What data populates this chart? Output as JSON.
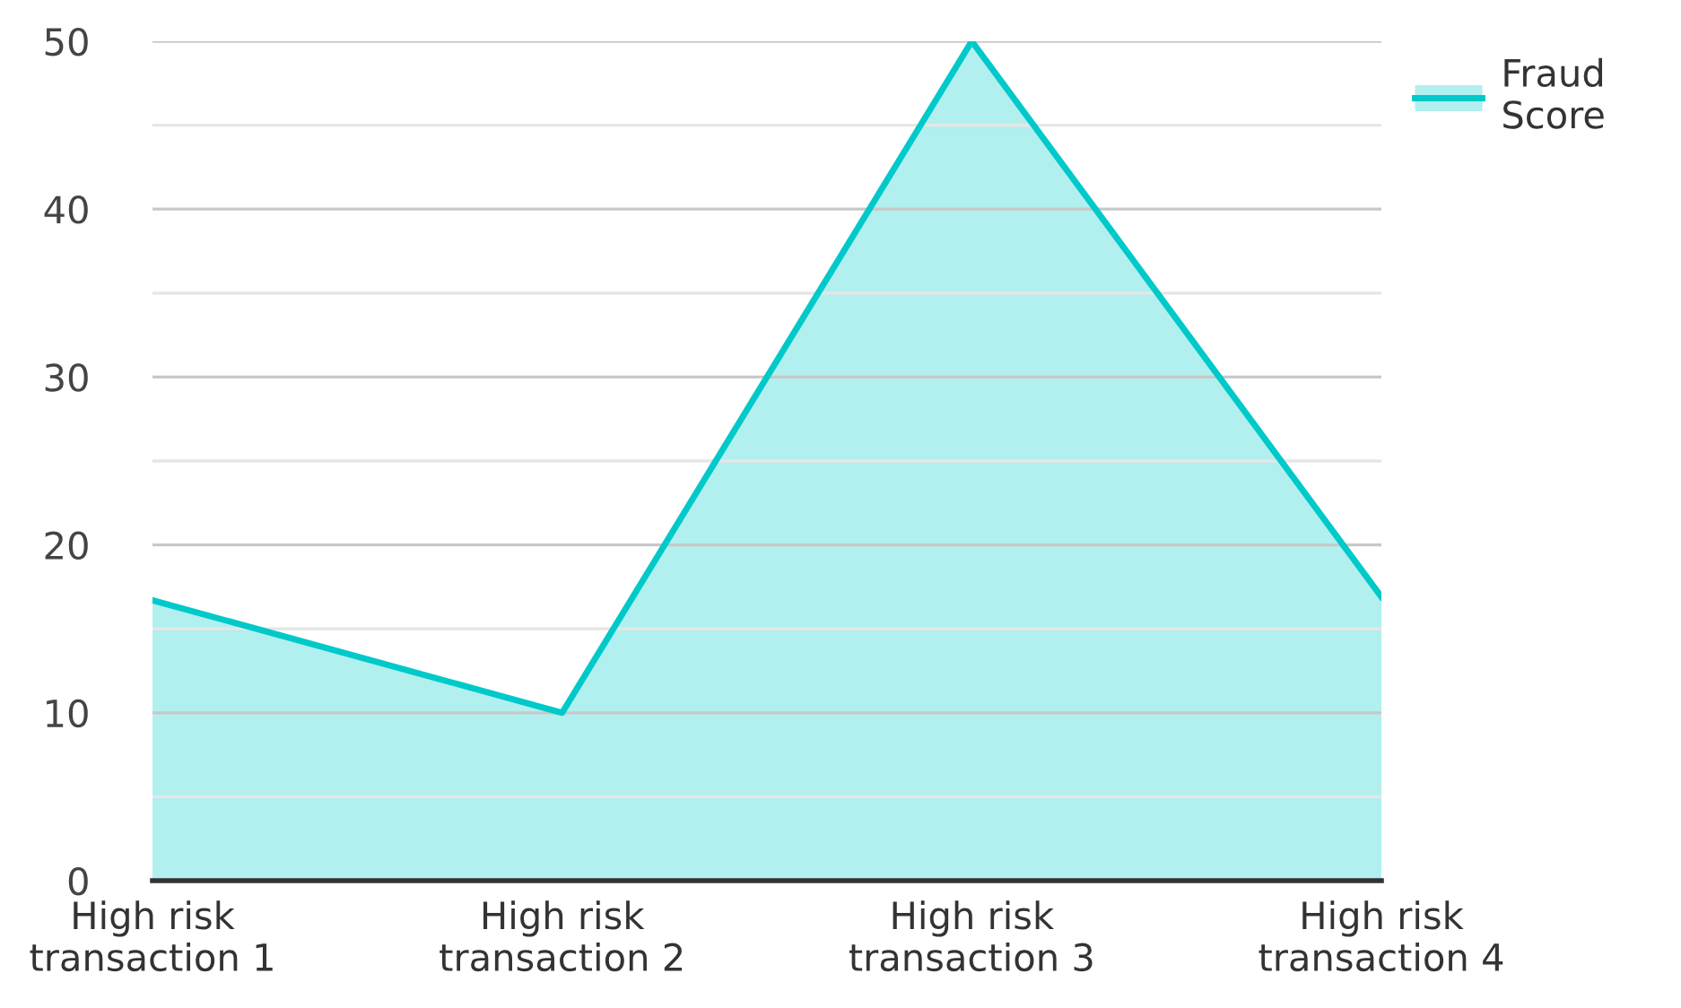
{
  "chart_data": {
    "type": "area",
    "categories": [
      "High risk\ntransaction 1",
      "High risk\ntransaction 2",
      "High risk\ntransaction 3",
      "High risk\ntransaction 4"
    ],
    "series": [
      {
        "name": "Fraud\nScore",
        "color": "#00c9c9",
        "values": [
          16.7,
          10,
          50,
          16.9
        ]
      }
    ],
    "ylim": [
      0,
      50
    ],
    "yticks": [
      0,
      {
        "value": 5,
        "label": null
      },
      10,
      {
        "value": 15,
        "label": null
      },
      20,
      {
        "value": 25,
        "label": null
      },
      30,
      {
        "value": 35,
        "label": null
      },
      40,
      {
        "value": 45,
        "label": null
      },
      50
    ],
    "grid": "y",
    "legend": "top right"
  }
}
